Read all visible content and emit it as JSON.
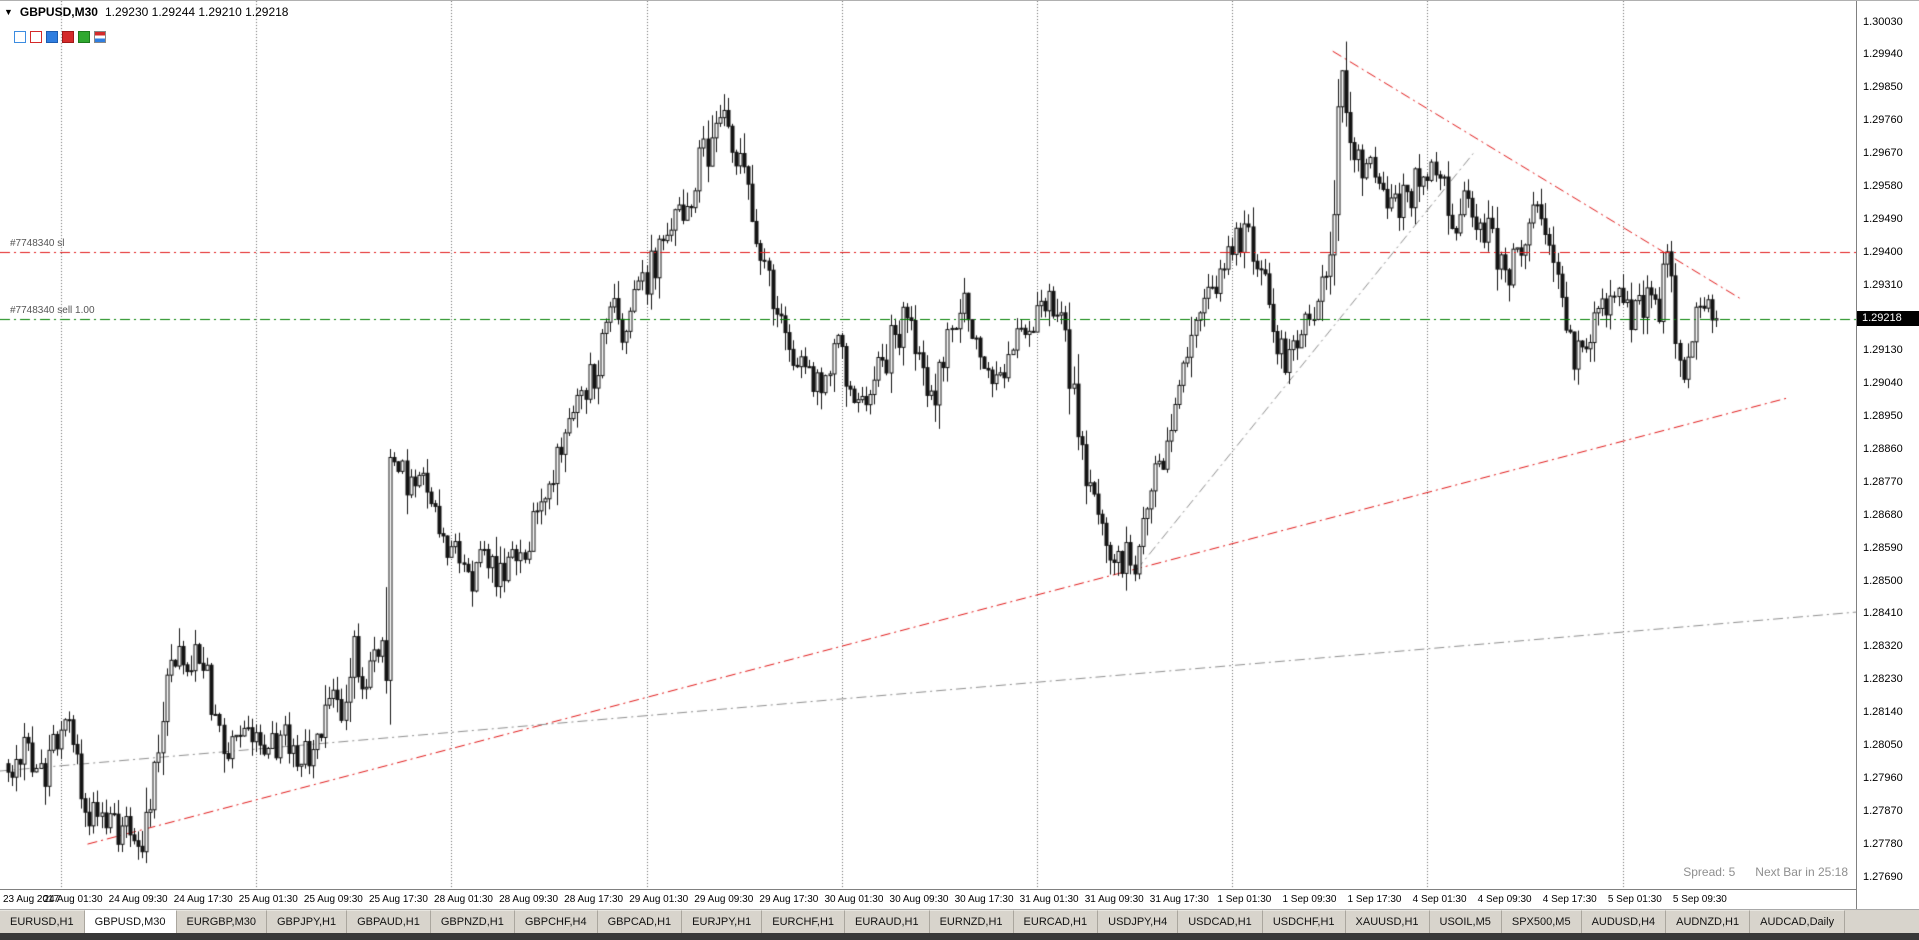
{
  "window": {
    "marker": "▼",
    "symbol": "GBPUSD,M30",
    "ohlc": "1.29230 1.29244 1.29210 1.29218"
  },
  "toolbar": {
    "icons": [
      {
        "name": "profile-blank-blue-icon",
        "fill": "#ffffff",
        "border": "#3c8ce0"
      },
      {
        "name": "profile-blank-red-icon",
        "fill": "#ffffff",
        "border": "#d42a2a"
      },
      {
        "name": "profile-blue-icon",
        "fill": "#2f7ee0",
        "border": "#1c5cb0"
      },
      {
        "name": "profile-red-icon",
        "fill": "#d42a2a",
        "border": "#a01818"
      },
      {
        "name": "profile-green-icon",
        "fill": "#2fa82f",
        "border": "#1d7a1d"
      },
      {
        "name": "profile-striped-icon",
        "fill": "#ffffff",
        "border": "#888888",
        "stripes": [
          "#d42a2a",
          "#ffffff",
          "#2f7ee0"
        ]
      }
    ]
  },
  "chart_data": {
    "type": "candlestick",
    "symbol": "GBPUSD",
    "timeframe": "M30",
    "current_price": 1.29218,
    "price_axis": {
      "max": 1.3003,
      "min": 1.2769,
      "step": 0.0009,
      "labels": [
        "1.30030",
        "1.29940",
        "1.29850",
        "1.29760",
        "1.29670",
        "1.29580",
        "1.29490",
        "1.29400",
        "1.29310",
        "1.29220",
        "1.29130",
        "1.29040",
        "1.28950",
        "1.28860",
        "1.28770",
        "1.28680",
        "1.28590",
        "1.28500",
        "1.28410",
        "1.28320",
        "1.28230",
        "1.28140",
        "1.28050",
        "1.27960",
        "1.27870",
        "1.27780",
        "1.27690"
      ]
    },
    "time_labels": [
      "23 Aug 2017",
      "24 Aug 01:30",
      "24 Aug 09:30",
      "24 Aug 17:30",
      "25 Aug 01:30",
      "25 Aug 09:30",
      "25 Aug 17:30",
      "28 Aug 01:30",
      "28 Aug 09:30",
      "28 Aug 17:30",
      "29 Aug 01:30",
      "29 Aug 09:30",
      "29 Aug 17:30",
      "30 Aug 01:30",
      "30 Aug 09:30",
      "30 Aug 17:30",
      "31 Aug 01:30",
      "31 Aug 09:30",
      "31 Aug 17:30",
      "1 Sep 01:30",
      "1 Sep 09:30",
      "1 Sep 17:30",
      "4 Sep 01:30",
      "4 Sep 09:30",
      "4 Sep 17:30",
      "5 Sep 01:30",
      "5 Sep 09:30"
    ],
    "bars_per_label": 16,
    "day_separator_label_indexes": [
      1,
      4,
      7,
      10,
      13,
      16,
      19,
      22,
      25
    ],
    "anchors": [
      [
        0.0,
        1.28
      ],
      [
        0.01,
        1.2806
      ],
      [
        0.018,
        1.2795
      ],
      [
        0.033,
        1.2812
      ],
      [
        0.047,
        1.2787
      ],
      [
        0.058,
        1.278
      ],
      [
        0.069,
        1.2785
      ],
      [
        0.078,
        1.27775
      ],
      [
        0.087,
        1.2798
      ],
      [
        0.094,
        1.2823
      ],
      [
        0.1,
        1.2833
      ],
      [
        0.107,
        1.2824
      ],
      [
        0.112,
        1.2835
      ],
      [
        0.12,
        1.2817
      ],
      [
        0.13,
        1.2802
      ],
      [
        0.141,
        1.2807
      ],
      [
        0.152,
        1.2801
      ],
      [
        0.163,
        1.2806
      ],
      [
        0.174,
        1.2799
      ],
      [
        0.183,
        1.2809
      ],
      [
        0.19,
        1.2818
      ],
      [
        0.197,
        1.2814
      ],
      [
        0.204,
        1.283
      ],
      [
        0.21,
        1.2824
      ],
      [
        0.217,
        1.283
      ],
      [
        0.224,
        1.2828
      ],
      [
        0.2253,
        1.288
      ],
      [
        0.235,
        1.2878
      ],
      [
        0.243,
        1.2883
      ],
      [
        0.252,
        1.287
      ],
      [
        0.262,
        1.2858
      ],
      [
        0.274,
        1.2852
      ],
      [
        0.284,
        1.2856
      ],
      [
        0.293,
        1.285
      ],
      [
        0.304,
        1.2857
      ],
      [
        0.315,
        1.2872
      ],
      [
        0.326,
        1.2885
      ],
      [
        0.337,
        1.2898
      ],
      [
        0.348,
        1.291
      ],
      [
        0.357,
        1.2928
      ],
      [
        0.364,
        1.2919
      ],
      [
        0.372,
        1.2929
      ],
      [
        0.383,
        1.2938
      ],
      [
        0.393,
        1.2947
      ],
      [
        0.403,
        1.2956
      ],
      [
        0.4095,
        1.2968
      ],
      [
        0.413,
        1.2964
      ],
      [
        0.42,
        1.2979
      ],
      [
        0.428,
        1.2965
      ],
      [
        0.433,
        1.2972
      ],
      [
        0.441,
        1.295
      ],
      [
        0.451,
        1.293
      ],
      [
        0.46,
        1.2917
      ],
      [
        0.47,
        1.2905
      ],
      [
        0.48,
        1.2901
      ],
      [
        0.49,
        1.2913
      ],
      [
        0.5,
        1.2904
      ],
      [
        0.51,
        1.2901
      ],
      [
        0.52,
        1.2913
      ],
      [
        0.529,
        1.2921
      ],
      [
        0.538,
        1.2913
      ],
      [
        0.547,
        1.2899
      ],
      [
        0.556,
        1.2918
      ],
      [
        0.565,
        1.2924
      ],
      [
        0.575,
        1.2914
      ],
      [
        0.584,
        1.2906
      ],
      [
        0.594,
        1.2912
      ],
      [
        0.605,
        1.292
      ],
      [
        0.614,
        1.2926
      ],
      [
        0.62,
        1.2927
      ],
      [
        0.63,
        1.29
      ],
      [
        0.639,
        1.2876
      ],
      [
        0.649,
        1.2862
      ],
      [
        0.658,
        1.2856
      ],
      [
        0.667,
        1.28535
      ],
      [
        0.675,
        1.2872
      ],
      [
        0.685,
        1.289
      ],
      [
        0.694,
        1.2903
      ],
      [
        0.703,
        1.292
      ],
      [
        0.712,
        1.293
      ],
      [
        0.721,
        1.2938
      ],
      [
        0.73,
        1.2945
      ],
      [
        0.739,
        1.2938
      ],
      [
        0.748,
        1.292
      ],
      [
        0.755,
        1.2908
      ],
      [
        0.762,
        1.2916
      ],
      [
        0.77,
        1.2923
      ],
      [
        0.777,
        1.2932
      ],
      [
        0.7825,
        1.2948
      ],
      [
        0.7845,
        1.2956
      ],
      [
        0.7865,
        1.2993
      ],
      [
        0.79,
        1.2984
      ],
      [
        0.793,
        1.297
      ],
      [
        0.799,
        1.2962
      ],
      [
        0.804,
        1.2969
      ],
      [
        0.812,
        1.2956
      ],
      [
        0.819,
        1.295
      ],
      [
        0.826,
        1.2956
      ],
      [
        0.835,
        1.296
      ],
      [
        0.8405,
        1.2965
      ],
      [
        0.848,
        1.2956
      ],
      [
        0.856,
        1.295
      ],
      [
        0.864,
        1.2954
      ],
      [
        0.872,
        1.2948
      ],
      [
        0.88,
        1.294
      ],
      [
        0.887,
        1.2934
      ],
      [
        0.896,
        1.2942
      ],
      [
        0.904,
        1.295
      ],
      [
        0.912,
        1.2944
      ],
      [
        0.919,
        1.2924
      ],
      [
        0.926,
        1.291
      ],
      [
        0.933,
        1.2916
      ],
      [
        0.942,
        1.2923
      ],
      [
        0.951,
        1.2927
      ],
      [
        0.959,
        1.2921
      ],
      [
        0.968,
        1.2929
      ],
      [
        0.975,
        1.2923
      ],
      [
        0.981,
        1.2938
      ],
      [
        0.987,
        1.2915
      ],
      [
        0.991,
        1.29
      ],
      [
        0.996,
        1.292
      ],
      [
        1.0,
        1.29218
      ]
    ],
    "orders": {
      "sl": {
        "label": "#7748340 sl",
        "price": 1.294,
        "color": "#e21a1a"
      },
      "sell": {
        "label": "#7748340 sell 1.00",
        "price": 1.29218,
        "color": "#008000"
      }
    },
    "trendlines": [
      {
        "f1": 0.047,
        "p1": 1.2778,
        "f2": 1.051,
        "p2": 1.29,
        "color": "#e21a1a"
      },
      {
        "f1": 0.783,
        "p1": 1.2995,
        "f2": 1.025,
        "p2": 1.2927,
        "color": "#e21a1a"
      },
      {
        "f1": -0.005,
        "p1": 1.2798,
        "f2": 1.105,
        "p2": 1.2842,
        "color": "#909090"
      },
      {
        "f1": 0.667,
        "p1": 1.2853,
        "f2": 0.866,
        "p2": 1.2967,
        "color": "#909090"
      }
    ],
    "status": {
      "spread": "Spread: 5",
      "next_bar": "Next Bar in 25:18"
    }
  },
  "tabbar": {
    "tabs": [
      {
        "label": "EURUSD,H1",
        "active": false
      },
      {
        "label": "GBPUSD,M30",
        "active": true
      },
      {
        "label": "EURGBP,M30",
        "active": false
      },
      {
        "label": "GBPJPY,H1",
        "active": false
      },
      {
        "label": "GBPAUD,H1",
        "active": false
      },
      {
        "label": "GBPNZD,H1",
        "active": false
      },
      {
        "label": "GBPCHF,H4",
        "active": false
      },
      {
        "label": "GBPCAD,H1",
        "active": false
      },
      {
        "label": "EURJPY,H1",
        "active": false
      },
      {
        "label": "EURCHF,H1",
        "active": false
      },
      {
        "label": "EURAUD,H1",
        "active": false
      },
      {
        "label": "EURNZD,H1",
        "active": false
      },
      {
        "label": "EURCAD,H1",
        "active": false
      },
      {
        "label": "USDJPY,H4",
        "active": false
      },
      {
        "label": "USDCAD,H1",
        "active": false
      },
      {
        "label": "USDCHF,H1",
        "active": false
      },
      {
        "label": "XAUUSD,H1",
        "active": false
      },
      {
        "label": "USOIL,M5",
        "active": false
      },
      {
        "label": "SPX500,M5",
        "active": false
      },
      {
        "label": "AUDUSD,H4",
        "active": false
      },
      {
        "label": "AUDNZD,H1",
        "active": false
      },
      {
        "label": "AUDCAD,Daily",
        "active": false
      }
    ]
  }
}
